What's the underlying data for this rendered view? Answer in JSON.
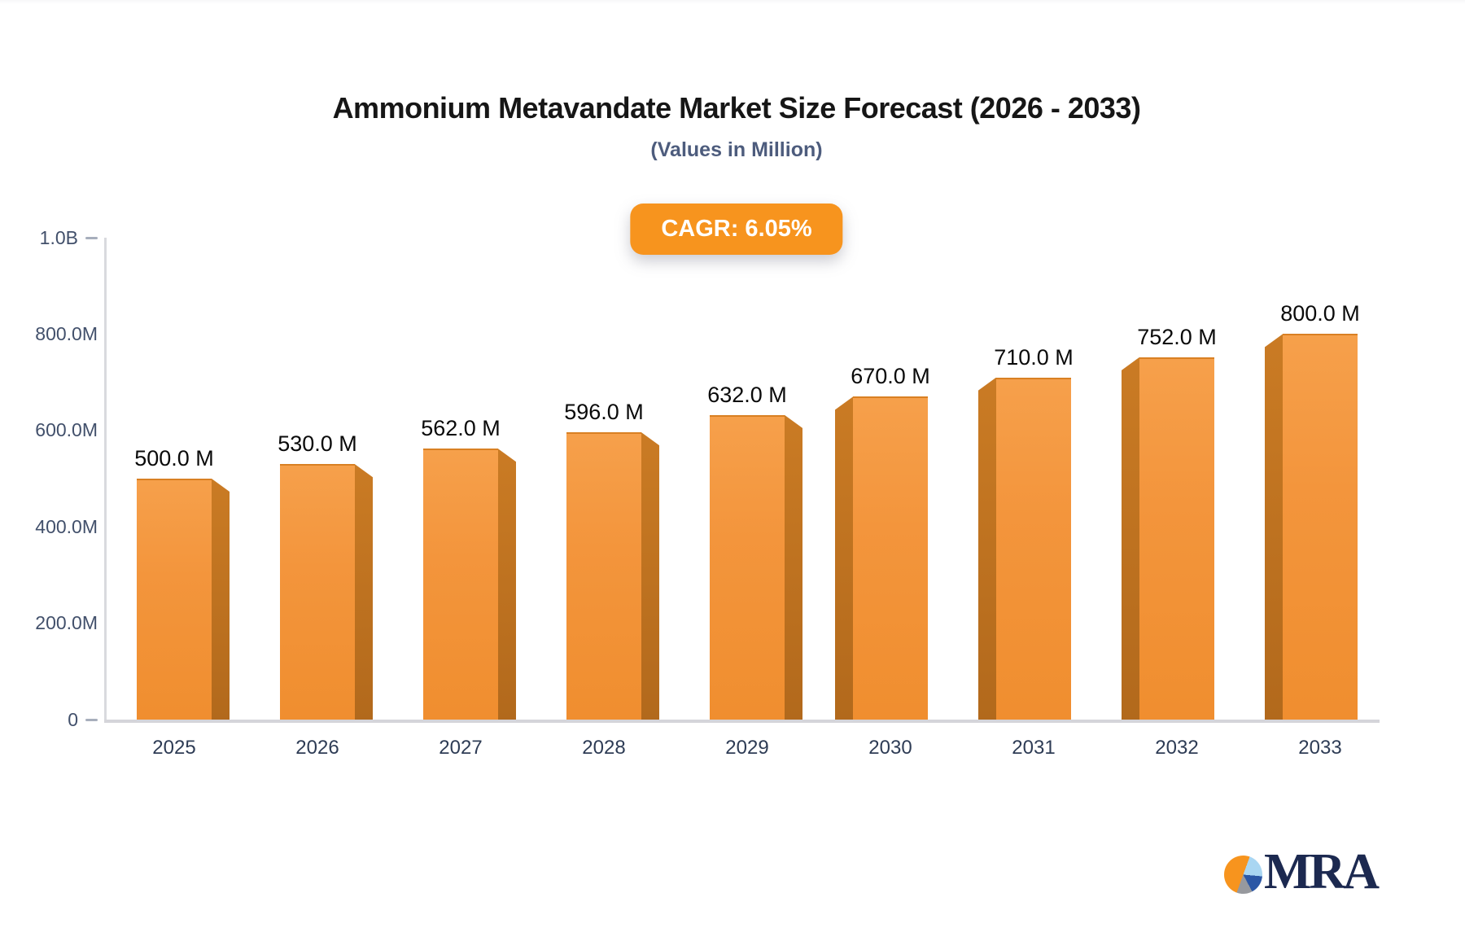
{
  "header": {
    "title": "Ammonium Metavandate Market Size Forecast (2026 - 2033)",
    "subtitle": "(Values in Million)",
    "cagr_label": "CAGR: 6.05%"
  },
  "chart_data": {
    "type": "bar",
    "title": "Ammonium Metavandate Market Size Forecast (2026 - 2033)",
    "subtitle": "(Values in Million)",
    "cagr_label": "CAGR: 6.05%",
    "cagr_value": "6.05%",
    "categories": [
      "2025",
      "2026",
      "2027",
      "2028",
      "2029",
      "2030",
      "2031",
      "2032",
      "2033"
    ],
    "values": [
      500,
      530,
      562,
      596,
      632,
      670,
      710,
      752,
      800
    ],
    "value_labels": [
      "500.0 M",
      "530.0 M",
      "562.0 M",
      "596.0 M",
      "632.0 M",
      "670.0 M",
      "710.0 M",
      "752.0 M",
      "800.0 M"
    ],
    "xlabel": "",
    "ylabel": "",
    "ylim": [
      0,
      1000
    ],
    "yticks": [
      {
        "value": 0,
        "label": "0",
        "dash": true
      },
      {
        "value": 200,
        "label": "200.0M",
        "dash": false
      },
      {
        "value": 400,
        "label": "400.0M",
        "dash": false
      },
      {
        "value": 600,
        "label": "600.0M",
        "dash": false
      },
      {
        "value": 800,
        "label": "800.0M",
        "dash": false
      },
      {
        "value": 1000,
        "label": "1.0B",
        "dash": true
      }
    ],
    "grid": false,
    "legend": "none",
    "colors": {
      "bar_face": "#F3953C",
      "bar_face_top": "#F6A04B",
      "bar_face_bottom": "#F08E2F",
      "bar_side": "#B2691C",
      "badge_background": "#F7941E",
      "badge_text": "#FFFFFF",
      "axis_line": "#D5D5DA",
      "axis_text": "#42506B",
      "value_text": "#0A0A0A",
      "subtitle_text": "#4D5C7D",
      "title_text": "#161616"
    }
  },
  "brand": {
    "logo_text": "MRA",
    "logo_icon": "pie-chart-logo-icon",
    "logo_colors": {
      "orange": "#F7941E",
      "light_blue": "#A9D6F2",
      "blue": "#2B57A5",
      "gray": "#97999E",
      "text": "#1C2950"
    }
  }
}
